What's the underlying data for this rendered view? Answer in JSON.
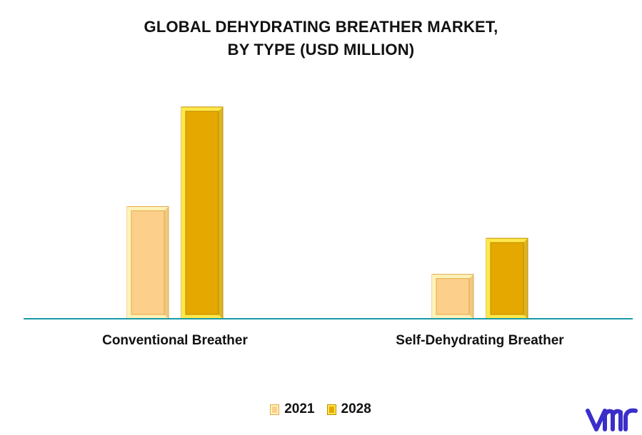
{
  "title_line1": "GLOBAL DEHYDRATING BREATHER MARKET,",
  "title_line2": "BY TYPE (USD MILLION)",
  "colors": {
    "axis": "#1a9aa8",
    "s2021_face": "#fcd08a",
    "s2021_rim": "#fff2b8",
    "s2021_edge": "#e2a850",
    "s2028_face": "#e4a800",
    "s2028_rim": "#ffe94a",
    "s2028_edge": "#c08a00",
    "logo": "#3b2fc9"
  },
  "chart_data": {
    "type": "bar",
    "title": "GLOBAL DEHYDRATING BREATHER MARKET, BY TYPE (USD MILLION)",
    "categories": [
      "Conventional Breather",
      "Self-Dehydrating Breather"
    ],
    "series": [
      {
        "name": "2021",
        "values": [
          53,
          21
        ]
      },
      {
        "name": "2028",
        "values": [
          100,
          38
        ]
      }
    ],
    "ylim": [
      0,
      100
    ],
    "grid": false,
    "legend_position": "bottom-center"
  }
}
